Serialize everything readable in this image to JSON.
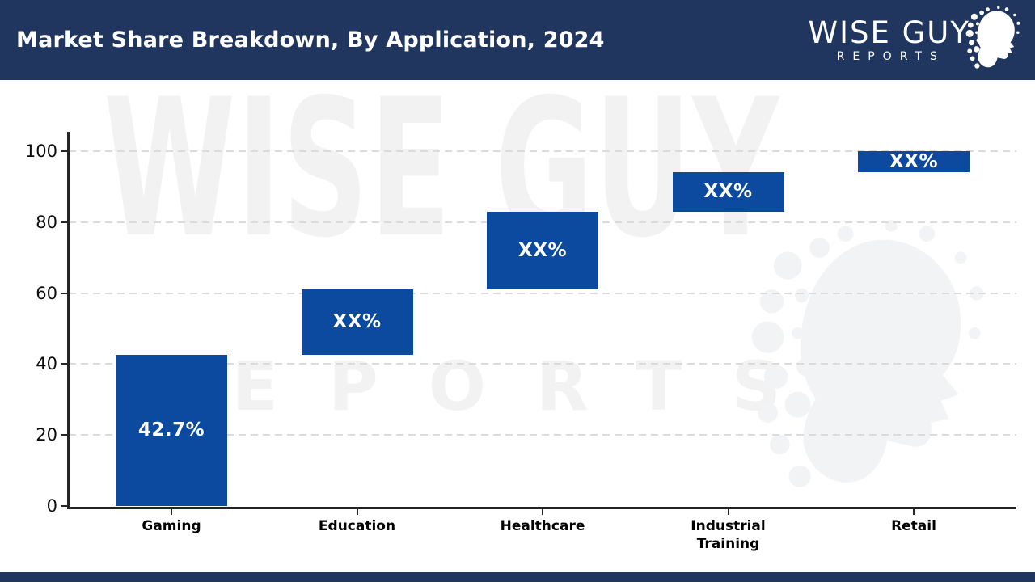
{
  "header": {
    "title": "Market Share Breakdown, By Application, 2024",
    "brand": {
      "wordmark": "WISE GUY",
      "subtext": "REPORTS"
    },
    "bg_color": "#21365f"
  },
  "watermark": {
    "wordmark": "WISE GUY",
    "subtext": "REPORTS"
  },
  "footer": {
    "bg_color": "#21365f"
  },
  "chart_data": {
    "type": "bar",
    "subtype": "waterfall",
    "title": "Market Share Breakdown, By Application, 2024",
    "categories": [
      "Gaming",
      "Education",
      "Healthcare",
      "Industrial Training",
      "Retail"
    ],
    "segments": [
      {
        "category": "Gaming",
        "lines": [
          "Gaming"
        ],
        "start": 0,
        "end": 42.7,
        "label": "42.7%"
      },
      {
        "category": "Education",
        "lines": [
          "Education"
        ],
        "start": 42.7,
        "end": 61.0,
        "label": "XX%"
      },
      {
        "category": "Healthcare",
        "lines": [
          "Healthcare"
        ],
        "start": 61.0,
        "end": 83.0,
        "label": "XX%"
      },
      {
        "category": "Industrial Training",
        "lines": [
          "Industrial",
          "Training"
        ],
        "start": 83.0,
        "end": 94.0,
        "label": "XX%"
      },
      {
        "category": "Retail",
        "lines": [
          "Retail"
        ],
        "start": 94.0,
        "end": 100.0,
        "label": "XX%"
      }
    ],
    "yticks": [
      0,
      20,
      40,
      60,
      80,
      100
    ],
    "ylim": [
      0,
      105
    ],
    "grid": "dashed-horizontal",
    "legend": "none",
    "bar_color": "#0b4a9e",
    "bar_label_color": "#ffffff",
    "axis_color": "#262626",
    "grid_color": "#dbdbdb"
  }
}
